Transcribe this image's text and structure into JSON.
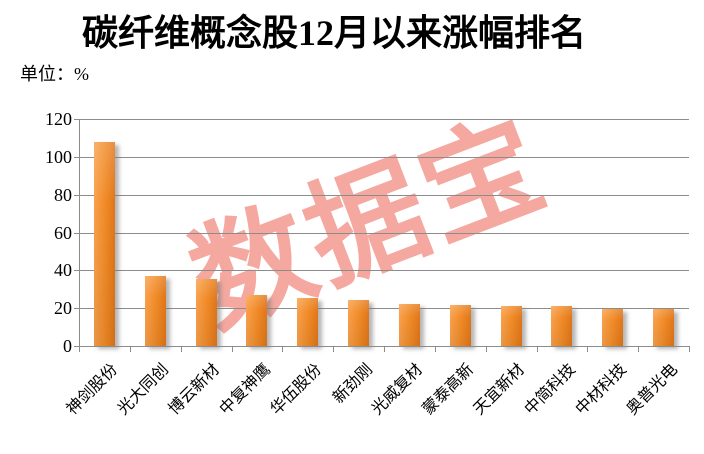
{
  "header": {
    "title": "碳纤维概念股12月以来涨幅排名",
    "unit_label": "单位：%"
  },
  "watermark": {
    "text": "数据宝",
    "color": "#F5A89F"
  },
  "colors": {
    "axis_gray": "#8C8C8C",
    "bar_orange_light": "#F9A04C",
    "bar_orange_dark": "#E0761A",
    "text_black": "#000000"
  },
  "chart_data": {
    "type": "bar",
    "title": "碳纤维概念股12月以来涨幅排名",
    "unit": "%",
    "xlabel": "",
    "ylabel": "单位：%",
    "categories": [
      "神剑股份",
      "光大同创",
      "博云新材",
      "中复神鹰",
      "华伍股份",
      "新劲刚",
      "光威复材",
      "蒙泰高新",
      "天宜新材",
      "中简科技",
      "中材科技",
      "奥普光电"
    ],
    "values": [
      108.1,
      36.8,
      35.3,
      26.9,
      25.4,
      24.2,
      22.0,
      21.8,
      21.4,
      21.2,
      19.8,
      19.4
    ],
    "ylim": [
      0,
      120
    ],
    "yticks": [
      0,
      20,
      40,
      60,
      80,
      100,
      120
    ],
    "grid": true,
    "legend": false,
    "watermark_text": "数据宝"
  }
}
